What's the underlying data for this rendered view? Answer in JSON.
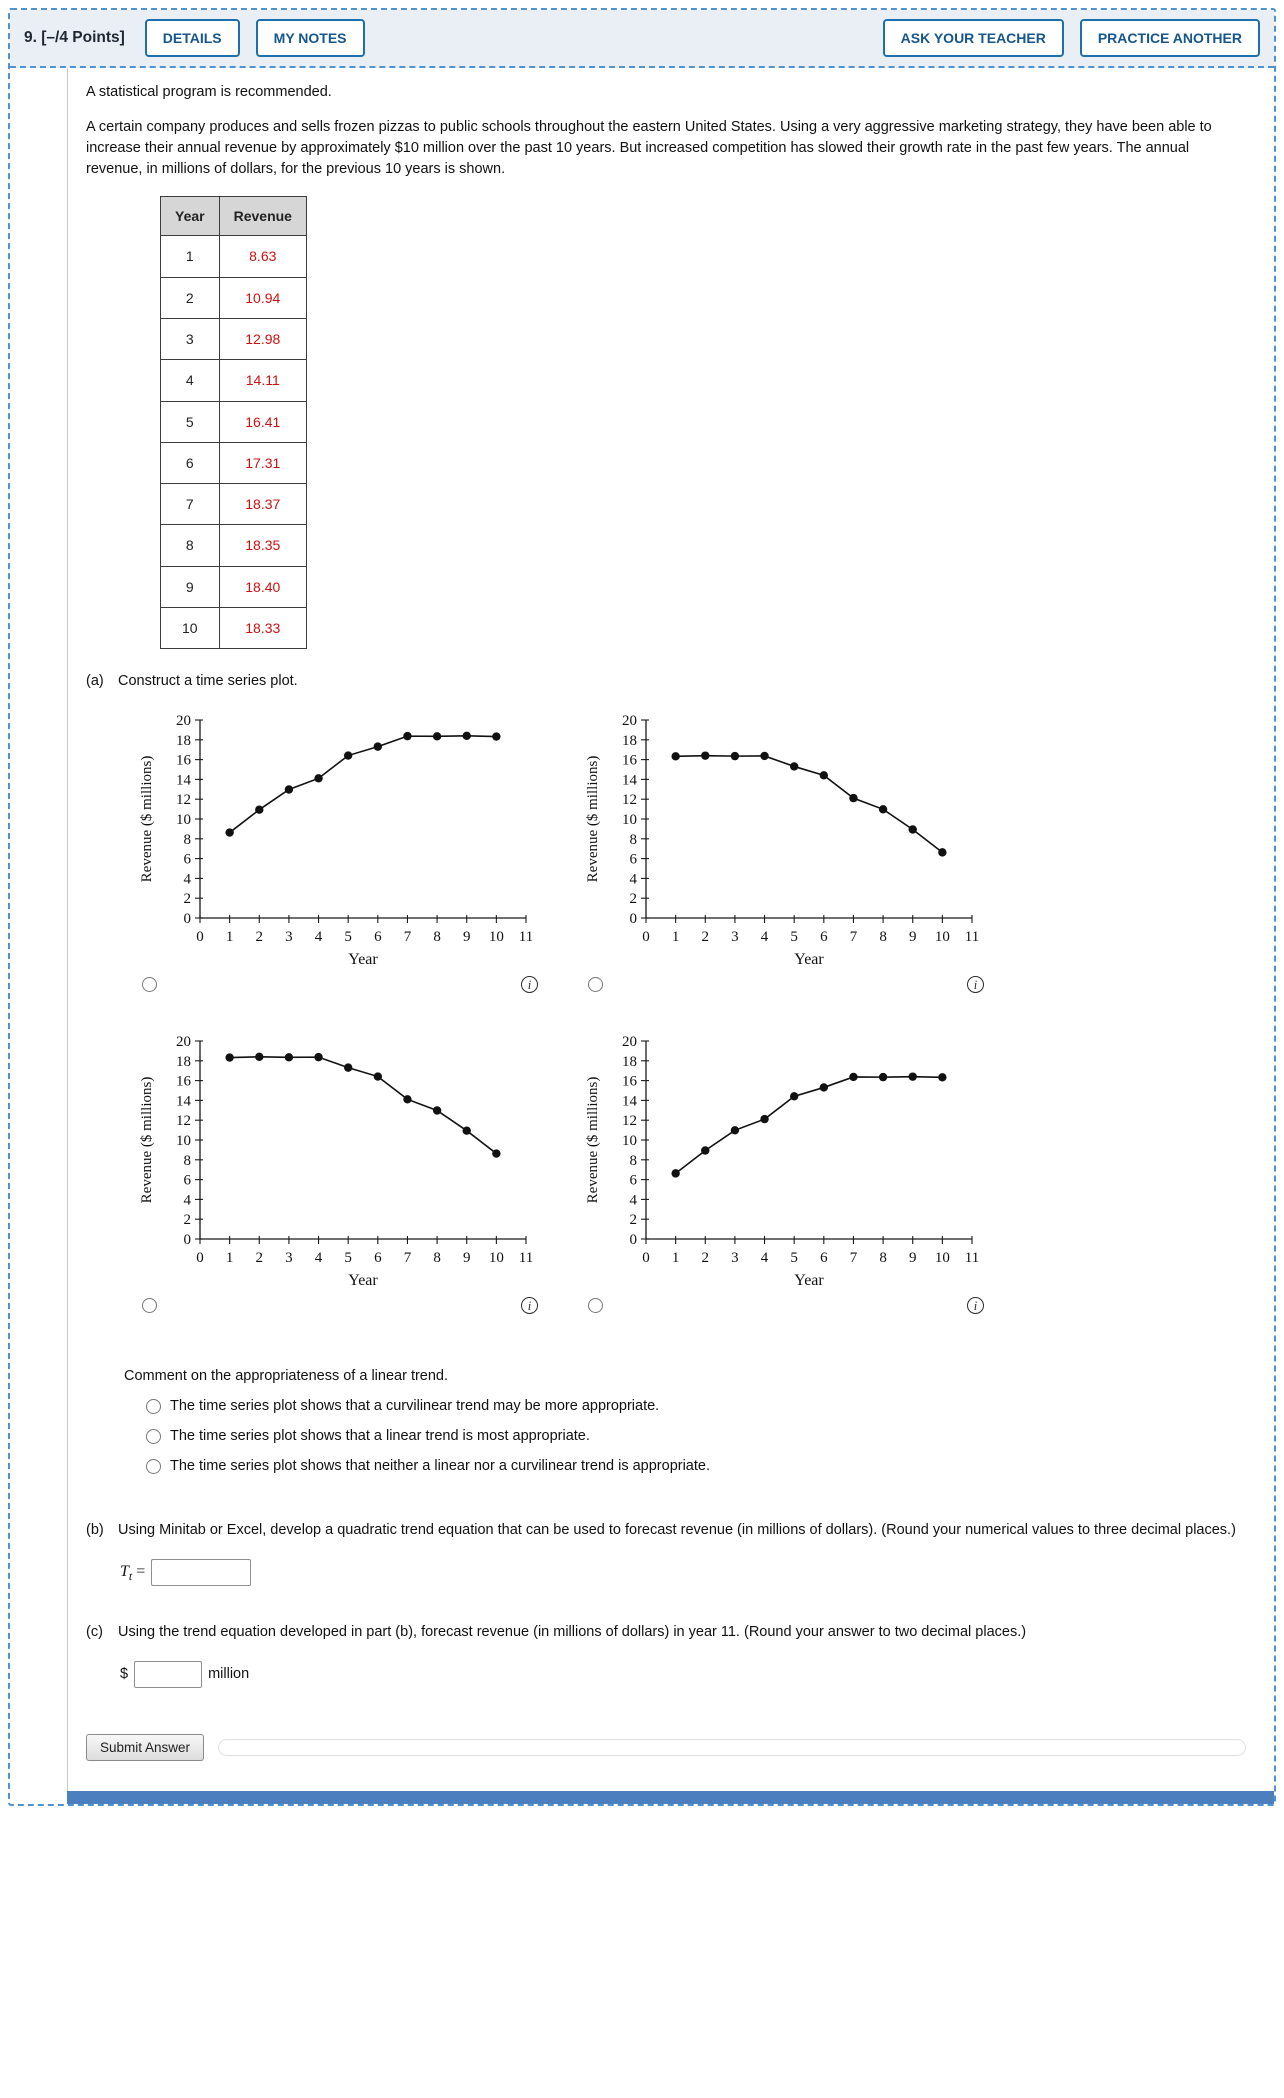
{
  "header": {
    "question_number": "9.",
    "points": "[–/4 Points]",
    "buttons": {
      "details": "DETAILS",
      "my_notes": "MY NOTES",
      "ask_teacher": "ASK YOUR TEACHER",
      "practice_another": "PRACTICE ANOTHER"
    }
  },
  "intro": {
    "recommendation": "A statistical program is recommended.",
    "paragraph": "A certain company produces and sells frozen pizzas to public schools throughout the eastern United States. Using a very aggressive marketing strategy, they have been able to increase their annual revenue by approximately $10 million over the past 10 years. But increased competition has slowed their growth rate in the past few years. The annual revenue, in millions of dollars, for the previous 10 years is shown."
  },
  "table": {
    "headers": [
      "Year",
      "Revenue"
    ],
    "rows": [
      [
        "1",
        "8.63"
      ],
      [
        "2",
        "10.94"
      ],
      [
        "3",
        "12.98"
      ],
      [
        "4",
        "14.11"
      ],
      [
        "5",
        "16.41"
      ],
      [
        "6",
        "17.31"
      ],
      [
        "7",
        "18.37"
      ],
      [
        "8",
        "18.35"
      ],
      [
        "9",
        "18.40"
      ],
      [
        "10",
        "18.33"
      ]
    ]
  },
  "part_a": {
    "label": "(a)",
    "prompt": "Construct a time series plot."
  },
  "chart_data": [
    {
      "type": "line",
      "x": [
        1,
        2,
        3,
        4,
        5,
        6,
        7,
        8,
        9,
        10
      ],
      "values": [
        8.63,
        10.94,
        12.98,
        14.11,
        16.41,
        17.31,
        18.37,
        18.35,
        18.4,
        18.33
      ],
      "xlabel": "Year",
      "ylabel": "Revenue ($ millions)",
      "xlim": [
        0,
        11
      ],
      "ylim": [
        0,
        20
      ],
      "xticks": [
        0,
        1,
        2,
        3,
        4,
        5,
        6,
        7,
        8,
        9,
        10,
        11
      ],
      "yticks": [
        0,
        2,
        4,
        6,
        8,
        10,
        12,
        14,
        16,
        18,
        20
      ],
      "grid": false,
      "legend": "none"
    },
    {
      "type": "line",
      "x": [
        1,
        2,
        3,
        4,
        5,
        6,
        7,
        8,
        9,
        10
      ],
      "values": [
        16.33,
        16.4,
        16.35,
        16.37,
        15.31,
        14.41,
        12.11,
        10.98,
        8.94,
        6.63
      ],
      "xlabel": "Year",
      "ylabel": "Revenue ($ millions)",
      "xlim": [
        0,
        11
      ],
      "ylim": [
        0,
        20
      ],
      "xticks": [
        0,
        1,
        2,
        3,
        4,
        5,
        6,
        7,
        8,
        9,
        10,
        11
      ],
      "yticks": [
        0,
        2,
        4,
        6,
        8,
        10,
        12,
        14,
        16,
        18,
        20
      ],
      "grid": false,
      "legend": "none"
    },
    {
      "type": "line",
      "x": [
        1,
        2,
        3,
        4,
        5,
        6,
        7,
        8,
        9,
        10
      ],
      "values": [
        18.33,
        18.4,
        18.35,
        18.37,
        17.31,
        16.41,
        14.11,
        12.98,
        10.94,
        8.63
      ],
      "xlabel": "Year",
      "ylabel": "Revenue ($ millions)",
      "xlim": [
        0,
        11
      ],
      "ylim": [
        0,
        20
      ],
      "xticks": [
        0,
        1,
        2,
        3,
        4,
        5,
        6,
        7,
        8,
        9,
        10,
        11
      ],
      "yticks": [
        0,
        2,
        4,
        6,
        8,
        10,
        12,
        14,
        16,
        18,
        20
      ],
      "grid": false,
      "legend": "none"
    },
    {
      "type": "line",
      "x": [
        1,
        2,
        3,
        4,
        5,
        6,
        7,
        8,
        9,
        10
      ],
      "values": [
        6.63,
        8.94,
        10.98,
        12.11,
        14.41,
        15.31,
        16.37,
        16.35,
        16.4,
        16.33
      ],
      "xlabel": "Year",
      "ylabel": "Revenue ($ millions)",
      "xlim": [
        0,
        11
      ],
      "ylim": [
        0,
        20
      ],
      "xticks": [
        0,
        1,
        2,
        3,
        4,
        5,
        6,
        7,
        8,
        9,
        10,
        11
      ],
      "yticks": [
        0,
        2,
        4,
        6,
        8,
        10,
        12,
        14,
        16,
        18,
        20
      ],
      "grid": false,
      "legend": "none"
    }
  ],
  "comment": {
    "prompt": "Comment on the appropriateness of a linear trend.",
    "options": [
      "The time series plot shows that a curvilinear trend may be more appropriate.",
      "The time series plot shows that a linear trend is most appropriate.",
      "The time series plot shows that neither a linear nor a curvilinear trend is appropriate."
    ]
  },
  "part_b": {
    "label": "(b)",
    "text": "Using Minitab or Excel, develop a quadratic trend equation that can be used to forecast revenue (in millions of dollars). (Round your numerical values to three decimal places.)",
    "var": "T",
    "sub": "t",
    "equals": " ="
  },
  "part_c": {
    "label": "(c)",
    "text": "Using the trend equation developed in part (b), forecast revenue (in millions of dollars) in year 11. (Round your answer to two decimal places.)",
    "currency": "$",
    "unit": "million"
  },
  "submit": {
    "label": "Submit Answer"
  }
}
